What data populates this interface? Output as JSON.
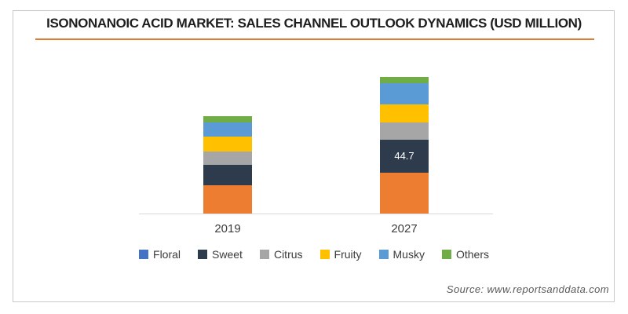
{
  "title": "ISONONANOIC ACID MARKET: SALES CHANNEL OUTLOOK DYNAMICS (USD MILLION)",
  "source_credit": "Source: www.reportsanddata.com",
  "accent_color": "#E07C2F",
  "chart_data": {
    "type": "bar",
    "stacked": true,
    "title": "ISONONANOIC ACID MARKET: SALES CHANNEL OUTLOOK DYNAMICS (USD MILLION)",
    "categories": [
      "2019",
      "2027"
    ],
    "series": [
      {
        "name": "Floral",
        "legend_color": "#4472C4",
        "bar_color": "#ED7D31",
        "values": [
          37.4,
          54.1
        ]
      },
      {
        "name": "Sweet",
        "legend_color": "#2E3B4C",
        "bar_color": "#2E3B4C",
        "values": [
          27.2,
          44.7
        ]
      },
      {
        "name": "Citrus",
        "legend_color": "#A6A6A6",
        "bar_color": "#A6A6A6",
        "values": [
          17.8,
          22.6
        ]
      },
      {
        "name": "Fruity",
        "legend_color": "#FFC000",
        "bar_color": "#FFC000",
        "values": [
          19.9,
          24.1
        ]
      },
      {
        "name": "Musky",
        "legend_color": "#5B9BD5",
        "bar_color": "#5B9BD5",
        "values": [
          19.2,
          28.7
        ]
      },
      {
        "name": "Others",
        "legend_color": "#70AD47",
        "bar_color": "#70AD47",
        "values": [
          8.4,
          7.6
        ]
      }
    ],
    "data_labels": [
      {
        "category": "2027",
        "series": "Sweet",
        "text": "44.7"
      }
    ],
    "legend_position": "bottom",
    "grid": false,
    "y_axis_visible": false,
    "ylim": [
      0,
      190
    ]
  }
}
